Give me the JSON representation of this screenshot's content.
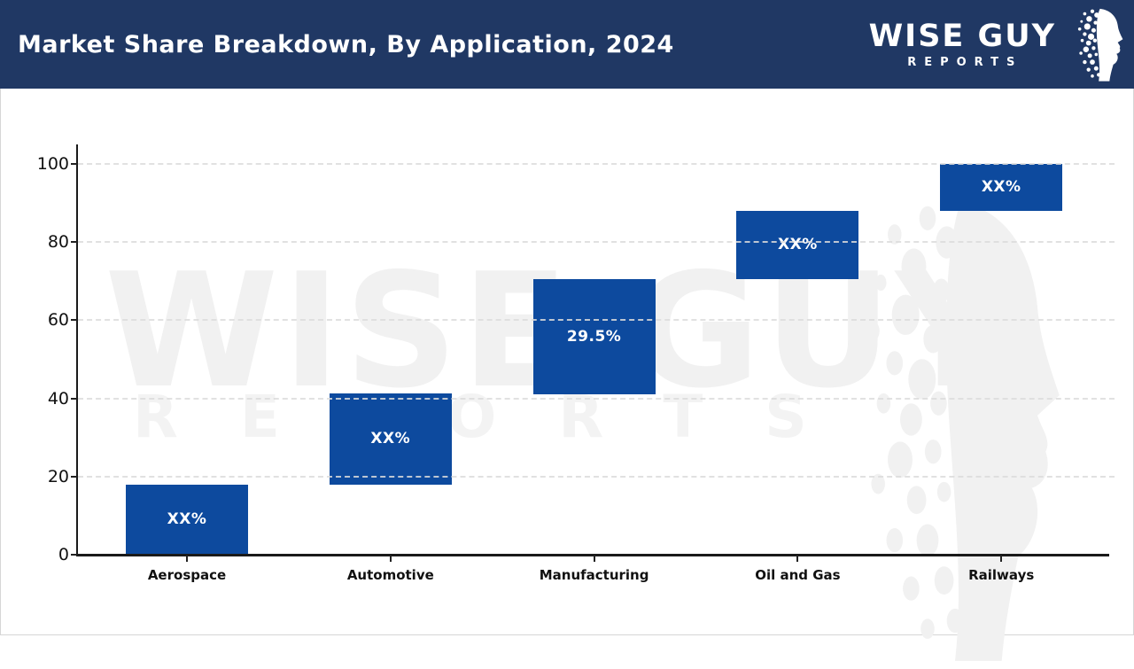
{
  "header": {
    "title": "Market Share Breakdown, By Application, 2024",
    "logo": {
      "line1": "WISE GUY",
      "line2": "REPORTS"
    }
  },
  "watermark": {
    "line1": "WISE GUY",
    "line2": "REPORTS"
  },
  "colors": {
    "header_bg": "#203864",
    "bar": "#0d4a9e",
    "bar_label": "#ffffff",
    "axis": "#1a1a1a",
    "grid": "#dcdcdc",
    "watermark": "#f1f1f1",
    "frame_border": "#d6d6d6"
  },
  "chart_data": {
    "type": "bar",
    "subtype": "waterfall (floating bars)",
    "title": "Market Share Breakdown, By Application, 2024",
    "categories": [
      "Aerospace",
      "Automotive",
      "Manufacturing",
      "Oil and Gas",
      "Railways"
    ],
    "segments": [
      {
        "category": "Aerospace",
        "start": 0,
        "end": 18,
        "label": "XX%"
      },
      {
        "category": "Automotive",
        "start": 18,
        "end": 41.2,
        "label": "XX%"
      },
      {
        "category": "Manufacturing",
        "start": 41,
        "end": 70.5,
        "label": "29.5%"
      },
      {
        "category": "Oil and Gas",
        "start": 70.5,
        "end": 88,
        "label": "XX%"
      },
      {
        "category": "Railways",
        "start": 88,
        "end": 100,
        "label": "XX%"
      }
    ],
    "y_ticks": [
      0,
      20,
      40,
      60,
      80,
      100
    ],
    "ylim": [
      0,
      105
    ],
    "xlabel": "",
    "ylabel": "",
    "grid": "horizontal dashed",
    "legend": "none",
    "value_labels": "centered inside bars, white bold"
  }
}
